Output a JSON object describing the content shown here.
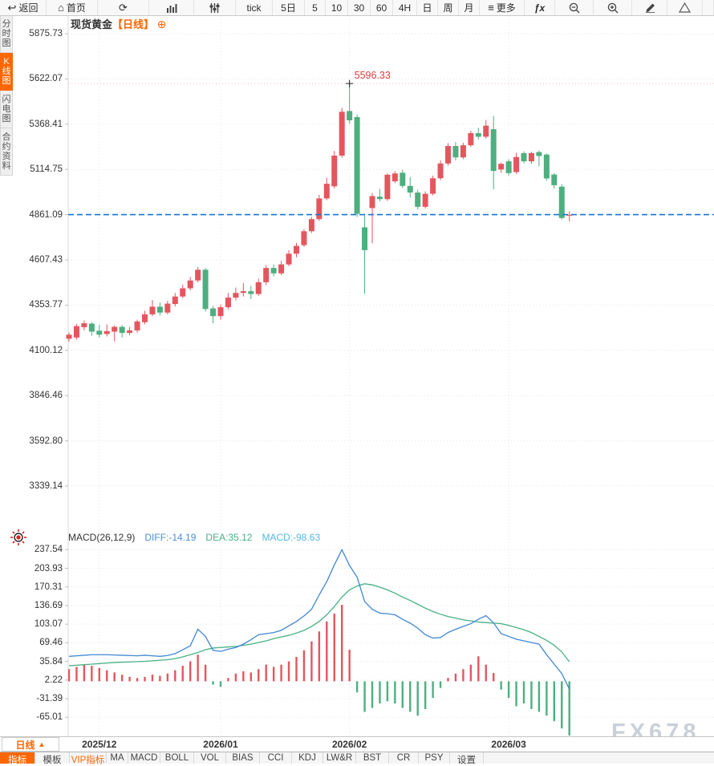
{
  "toolbar": {
    "items": [
      {
        "name": "back",
        "icon": "↩",
        "label": "返回"
      },
      {
        "name": "home",
        "icon": "⌂",
        "label": "首页"
      },
      {
        "name": "refresh",
        "icon": "⟳"
      },
      {
        "name": "bar-chart"
      },
      {
        "name": "indicator-sliders"
      },
      {
        "name": "tick",
        "label": "tick"
      },
      {
        "name": "range-5d",
        "label": "5日"
      },
      {
        "name": "interval-5",
        "label": "5"
      },
      {
        "name": "interval-10",
        "label": "10"
      },
      {
        "name": "interval-30",
        "label": "30"
      },
      {
        "name": "interval-60",
        "label": "60"
      },
      {
        "name": "interval-4h",
        "label": "4H"
      },
      {
        "name": "interval-day",
        "label": "日"
      },
      {
        "name": "interval-week",
        "label": "周"
      },
      {
        "name": "interval-month",
        "label": "月"
      },
      {
        "name": "more",
        "icon": "≡",
        "label": "更多"
      },
      {
        "name": "formula",
        "label": "ƒx"
      },
      {
        "name": "zoom-out"
      },
      {
        "name": "zoom-in"
      },
      {
        "name": "draw"
      },
      {
        "name": "shapes"
      }
    ]
  },
  "sidebar": {
    "tabs": [
      {
        "label": "分时图",
        "active": false
      },
      {
        "label": "K线图",
        "active": true
      },
      {
        "label": "闪电图",
        "active": false
      },
      {
        "label": "合约资料",
        "active": false
      }
    ]
  },
  "chart": {
    "title_symbol": "现货黄金",
    "title_period": "【日线】",
    "settings_icon": "⊕"
  },
  "macd_header": {
    "formula": "MACD(26,12,9)",
    "diff": "DIFF:-14.19",
    "dea": "DEA:35.12",
    "macd": "MACD:-98.63"
  },
  "footer": {
    "period_label": "日线",
    "period_arrow": "▲",
    "indicator_tabs": [
      {
        "label": "指标"
      },
      {
        "label": "模板"
      },
      {
        "label": "VIP指标"
      },
      {
        "label": "MA"
      },
      {
        "label": "MACD"
      },
      {
        "label": "BOLL"
      },
      {
        "label": "VOL"
      },
      {
        "label": "BIAS"
      },
      {
        "label": "CCI"
      },
      {
        "label": "KDJ"
      },
      {
        "label": "LW&R"
      },
      {
        "label": "BST"
      },
      {
        "label": "CR"
      },
      {
        "label": "PSY"
      },
      {
        "label": "设置"
      }
    ]
  },
  "watermark": "FX678",
  "colors": {
    "accent_orange": "#ff6600",
    "candle_up": "#e4565e",
    "candle_down": "#4daf7f",
    "hist_up": "#e4565e",
    "hist_down": "#4daf7f",
    "diff_line": "#4187d3",
    "dea_line": "#46b184",
    "price_dash_line": "#1874d2",
    "annotation_red": "#e23b3b",
    "high_dot_line": "#f2b9bb",
    "grid": "#e5e5e5",
    "axis": "#d8d8d8",
    "watermark": "#c9d0d9"
  },
  "chart_data": [
    {
      "type": "candlestick",
      "title": "现货黄金 日线 (Spot Gold, daily)",
      "yticks": [
        "5875.73",
        "5622.07",
        "5368.41",
        "5114.75",
        "4861.09",
        "4607.43",
        "4353.77",
        "4100.12",
        "3846.46",
        "3592.80",
        "3339.14"
      ],
      "x_labels": [
        "2025/12",
        "2026/01",
        "2026/02",
        "2026/03"
      ],
      "month_ticks": [
        4,
        20,
        37,
        58
      ],
      "high_marker": {
        "index": 37,
        "value": 5596.33,
        "label": "5596.33"
      },
      "last_price": 4861.09,
      "ohlc": [
        [
          4165,
          4200,
          4148,
          4188
        ],
        [
          4172,
          4248,
          4160,
          4236
        ],
        [
          4230,
          4268,
          4212,
          4252
        ],
        [
          4250,
          4258,
          4182,
          4205
        ],
        [
          4210,
          4242,
          4172,
          4188
        ],
        [
          4192,
          4246,
          4178,
          4208
        ],
        [
          4205,
          4240,
          4150,
          4232
        ],
        [
          4232,
          4242,
          4172,
          4198
        ],
        [
          4198,
          4232,
          4185,
          4212
        ],
        [
          4212,
          4272,
          4200,
          4262
        ],
        [
          4258,
          4322,
          4246,
          4302
        ],
        [
          4302,
          4382,
          4292,
          4345
        ],
        [
          4345,
          4368,
          4295,
          4312
        ],
        [
          4312,
          4378,
          4302,
          4362
        ],
        [
          4360,
          4422,
          4346,
          4402
        ],
        [
          4402,
          4468,
          4392,
          4448
        ],
        [
          4448,
          4512,
          4436,
          4492
        ],
        [
          4492,
          4568,
          4482,
          4552
        ],
        [
          4552,
          4562,
          4318,
          4332
        ],
        [
          4335,
          4348,
          4252,
          4292
        ],
        [
          4292,
          4358,
          4272,
          4342
        ],
        [
          4342,
          4422,
          4330,
          4396
        ],
        [
          4396,
          4452,
          4380,
          4422
        ],
        [
          4422,
          4478,
          4402,
          4432
        ],
        [
          4432,
          4462,
          4388,
          4416
        ],
        [
          4416,
          4502,
          4406,
          4482
        ],
        [
          4482,
          4578,
          4466,
          4562
        ],
        [
          4562,
          4582,
          4515,
          4532
        ],
        [
          4532,
          4602,
          4522,
          4582
        ],
        [
          4582,
          4662,
          4572,
          4642
        ],
        [
          4642,
          4702,
          4622,
          4686
        ],
        [
          4690,
          4780,
          4680,
          4768
        ],
        [
          4768,
          4848,
          4758,
          4836
        ],
        [
          4836,
          4972,
          4826,
          4952
        ],
        [
          4952,
          5068,
          4942,
          5034
        ],
        [
          5020,
          5218,
          5008,
          5192
        ],
        [
          5192,
          5460,
          5180,
          5438
        ],
        [
          5442,
          5596.33,
          5370,
          5390
        ],
        [
          5408,
          5422,
          4848,
          4866
        ],
        [
          4790,
          4866,
          4418,
          4662
        ],
        [
          4898,
          4982,
          4700,
          4965
        ],
        [
          4962,
          5005,
          4935,
          4948
        ],
        [
          4948,
          5092,
          4938,
          5085
        ],
        [
          5048,
          5105,
          5038,
          5092
        ],
        [
          5096,
          5112,
          5010,
          5022
        ],
        [
          5022,
          5072,
          4958,
          4985
        ],
        [
          4985,
          5000,
          4890,
          4905
        ],
        [
          4905,
          4992,
          4895,
          4978
        ],
        [
          4978,
          5080,
          4968,
          5065
        ],
        [
          5065,
          5165,
          5055,
          5148
        ],
        [
          5148,
          5262,
          5136,
          5246
        ],
        [
          5246,
          5268,
          5165,
          5182
        ],
        [
          5182,
          5264,
          5172,
          5250
        ],
        [
          5250,
          5332,
          5240,
          5318
        ],
        [
          5318,
          5348,
          5282,
          5298
        ],
        [
          5298,
          5392,
          5288,
          5360
        ],
        [
          5340,
          5414,
          5002,
          5106
        ],
        [
          5114,
          5152,
          5096,
          5146
        ],
        [
          5160,
          5172,
          5080,
          5094
        ],
        [
          5100,
          5208,
          5090,
          5184
        ],
        [
          5206,
          5216,
          5148,
          5160
        ],
        [
          5160,
          5214,
          5146,
          5206
        ],
        [
          5212,
          5220,
          5132,
          5190
        ],
        [
          5198,
          5204,
          5052,
          5064
        ],
        [
          5086,
          5094,
          5006,
          5026
        ],
        [
          5018,
          5032,
          4834,
          4842
        ],
        [
          4855,
          4880,
          4824,
          4860
        ]
      ]
    },
    {
      "type": "bar+line",
      "title": "MACD(26,12,9)",
      "yticks": [
        "237.54",
        "203.93",
        "170.31",
        "136.69",
        "103.07",
        "69.46",
        "35.84",
        "2.22",
        "-31.39",
        "-65.01"
      ],
      "last_values": {
        "diff": -14.19,
        "dea": 35.12,
        "macd": -98.63
      },
      "diff": [
        45,
        46,
        47,
        48,
        48,
        48,
        47.5,
        47,
        46.5,
        46,
        47,
        46,
        45,
        46.5,
        50,
        57,
        64,
        94,
        81,
        56,
        54,
        58,
        61,
        67,
        75,
        84,
        86,
        88,
        92,
        100,
        108,
        118,
        130,
        156,
        180,
        210,
        237.5,
        209,
        188,
        144,
        130,
        123,
        122,
        120,
        112,
        105,
        96,
        84,
        78,
        79,
        88,
        94,
        99,
        104,
        112,
        118.5,
        105.5,
        86,
        81,
        76,
        73,
        70,
        67,
        48,
        31,
        14,
        -14.19
      ],
      "dea": [
        28,
        29,
        30,
        31,
        32,
        33,
        34,
        34.5,
        35,
        35.5,
        36,
        37,
        38,
        39,
        41,
        44,
        48,
        52,
        57,
        60,
        61,
        62,
        63,
        65,
        67,
        70,
        73,
        77,
        80,
        83,
        87,
        92,
        99,
        108,
        120,
        135,
        152,
        165,
        172,
        176,
        174,
        170,
        165,
        159,
        152,
        146,
        139,
        132,
        126,
        121,
        117,
        114,
        111,
        109,
        107,
        106,
        105,
        104,
        101,
        97,
        93,
        88,
        81,
        74,
        65,
        53,
        35.12
      ],
      "hist": [
        22,
        26,
        30,
        28,
        24,
        20,
        16,
        12,
        8,
        6,
        8,
        12,
        10,
        14,
        20,
        28,
        36,
        48,
        30,
        -6,
        -10,
        6,
        14,
        18,
        16,
        22,
        30,
        26,
        30,
        36,
        44,
        56,
        72,
        90,
        108,
        122,
        138,
        57,
        -20,
        -55,
        -48,
        -40,
        -36,
        -40,
        -48,
        -55,
        -62,
        -50,
        -30,
        -12,
        6,
        14,
        22,
        30,
        45,
        30,
        15,
        -15,
        -30,
        -45,
        -40,
        -50,
        -55,
        -62,
        -72,
        -85,
        -98.63
      ]
    }
  ]
}
